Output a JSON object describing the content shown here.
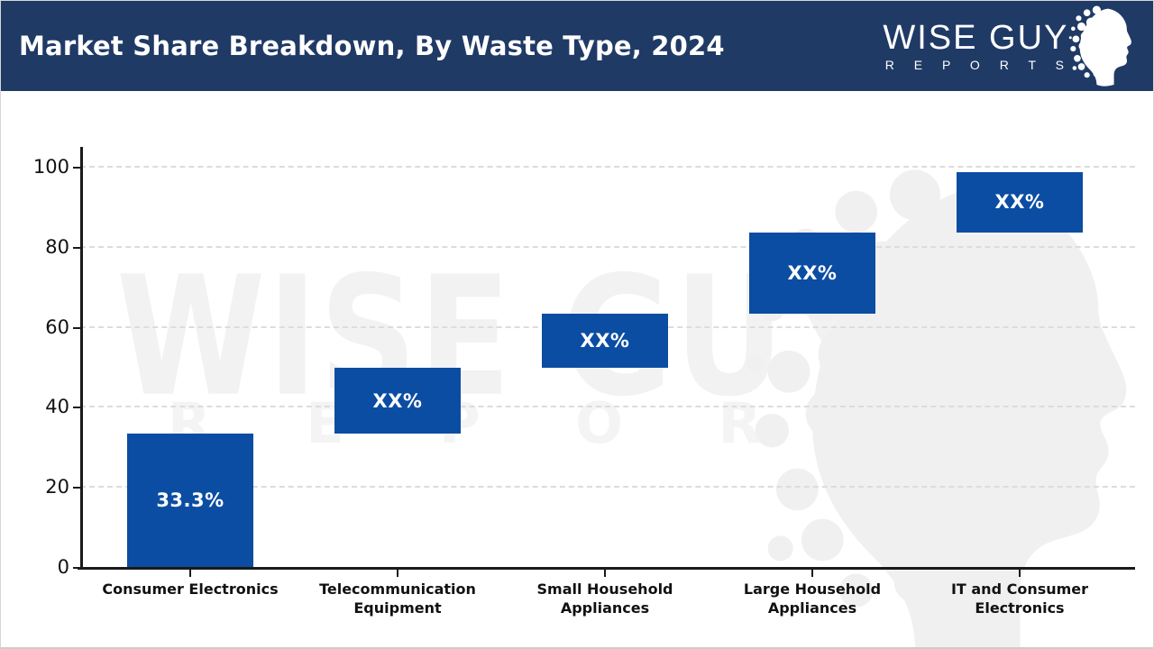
{
  "header": {
    "title": "Market Share Breakdown, By Waste Type, 2024",
    "bg_color": "#203a66",
    "logo": {
      "line1": "WISE GUY",
      "line2": "R E P O R T S",
      "head_icon": "dotted-face-profile"
    }
  },
  "watermark": {
    "line1": "WISE GUY",
    "line2": "R E P O R T S",
    "head_icon": "dotted-face-profile"
  },
  "chart_data": {
    "type": "bar",
    "subtype": "waterfall",
    "title": "Market Share Breakdown, By Waste Type, 2024",
    "xlabel": "",
    "ylabel": "",
    "ylim": [
      0,
      105
    ],
    "yticks": [
      0,
      20,
      40,
      60,
      80,
      100
    ],
    "grid": "horizontal-dashed",
    "legend": "none",
    "bar_color": "#0b4da2",
    "value_label_color": "#ffffff",
    "categories": [
      "Consumer Electronics",
      "Telecommunication Equipment",
      "Small Household Appliances",
      "Large Household Appliances",
      "IT and Consumer Electronics"
    ],
    "segments": [
      {
        "category": "Consumer Electronics",
        "start": 0,
        "end": 33.3,
        "label": "33.3%"
      },
      {
        "category": "Telecommunication Equipment",
        "start": 33.3,
        "end": 49.7,
        "label": "XX%"
      },
      {
        "category": "Small Household Appliances",
        "start": 49.7,
        "end": 63.4,
        "label": "XX%"
      },
      {
        "category": "Large Household Appliances",
        "start": 63.4,
        "end": 83.6,
        "label": "XX%"
      },
      {
        "category": "IT and Consumer Electronics",
        "start": 83.6,
        "end": 98.7,
        "label": "XX%"
      }
    ]
  }
}
